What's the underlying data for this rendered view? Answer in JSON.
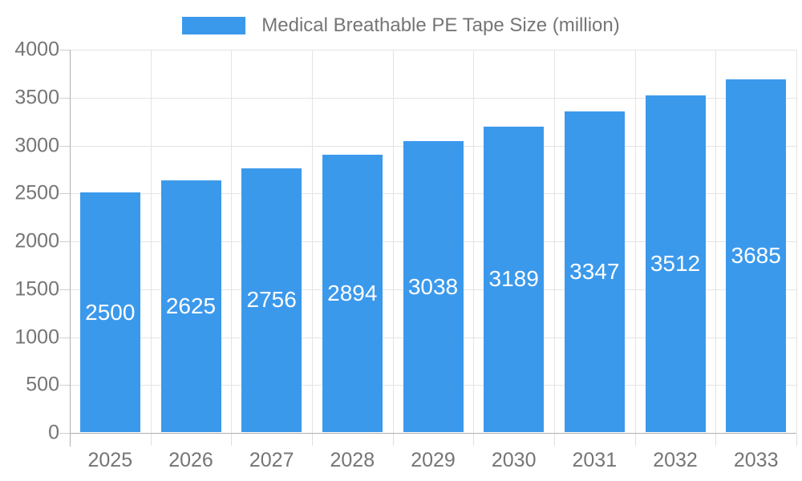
{
  "legend": {
    "label": "Medical Breathable PE Tape Size (million)"
  },
  "chart_data": {
    "type": "bar",
    "title": "Medical Breathable PE Tape Size (million)",
    "categories": [
      "2025",
      "2026",
      "2027",
      "2028",
      "2029",
      "2030",
      "2031",
      "2032",
      "2033"
    ],
    "values": [
      2500,
      2625,
      2756,
      2894,
      3038,
      3189,
      3347,
      3512,
      3685
    ],
    "xlabel": "",
    "ylabel": "",
    "ylim": [
      0,
      4000
    ],
    "yticks": [
      0,
      500,
      1000,
      1500,
      2000,
      2500,
      3000,
      3500,
      4000
    ],
    "grid": "both",
    "legend_position": "top-center",
    "bar_color": "#3B99EC",
    "bar_label_color": "#ffffff",
    "axis_text_color": "#757575",
    "gridline_color": "#E4E4E4",
    "axis_line_color": "#AFAFAF",
    "bar_width_ratio": 0.745
  }
}
